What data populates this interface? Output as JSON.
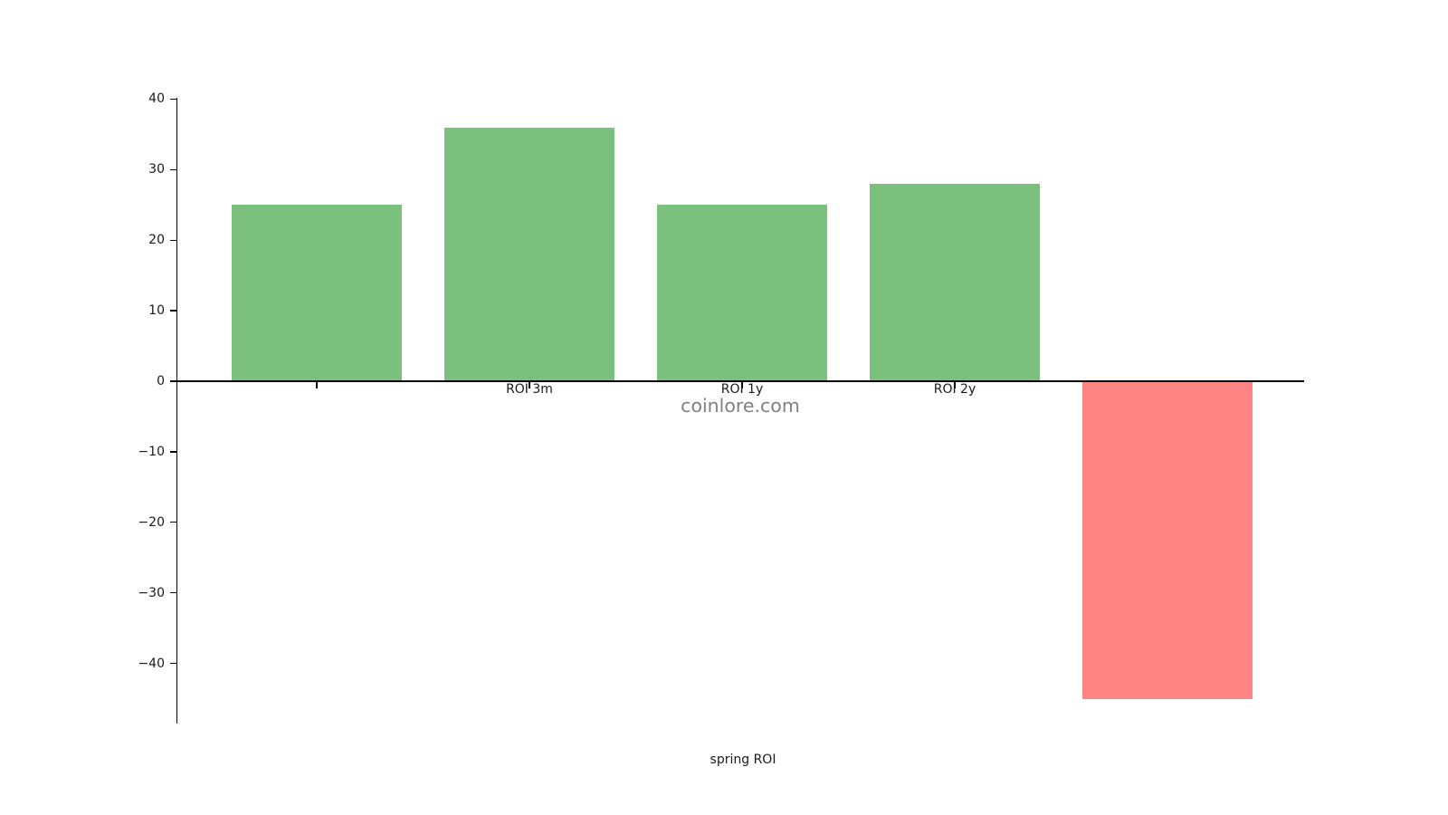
{
  "watermark": {
    "text": "coinlore.com",
    "color": "#808080"
  },
  "chart_data": {
    "type": "bar",
    "categories": [
      "",
      "ROI 3m",
      "ROI 1y",
      "ROI 2y",
      ""
    ],
    "values": [
      25,
      36,
      25,
      28,
      -45
    ],
    "series": [
      {
        "name": "spring ROI",
        "values": [
          25,
          36,
          25,
          28,
          -45
        ]
      }
    ],
    "bar_colors": [
      "#7cc07e",
      "#7cc07e",
      "#7cc07e",
      "#7cc07e",
      "#ff8585"
    ],
    "positive_color": "#7cc07e",
    "negative_color": "#ff8585",
    "title": "",
    "xlabel": "spring ROI",
    "ylabel": "",
    "yticks": [
      40,
      30,
      20,
      10,
      0,
      -10,
      -20,
      -30,
      -40
    ],
    "ylim": [
      -48.5,
      40
    ],
    "grid": false,
    "legend_position": "none",
    "axis_color": "#000000",
    "tick_label_color": "#1a1a1a"
  }
}
